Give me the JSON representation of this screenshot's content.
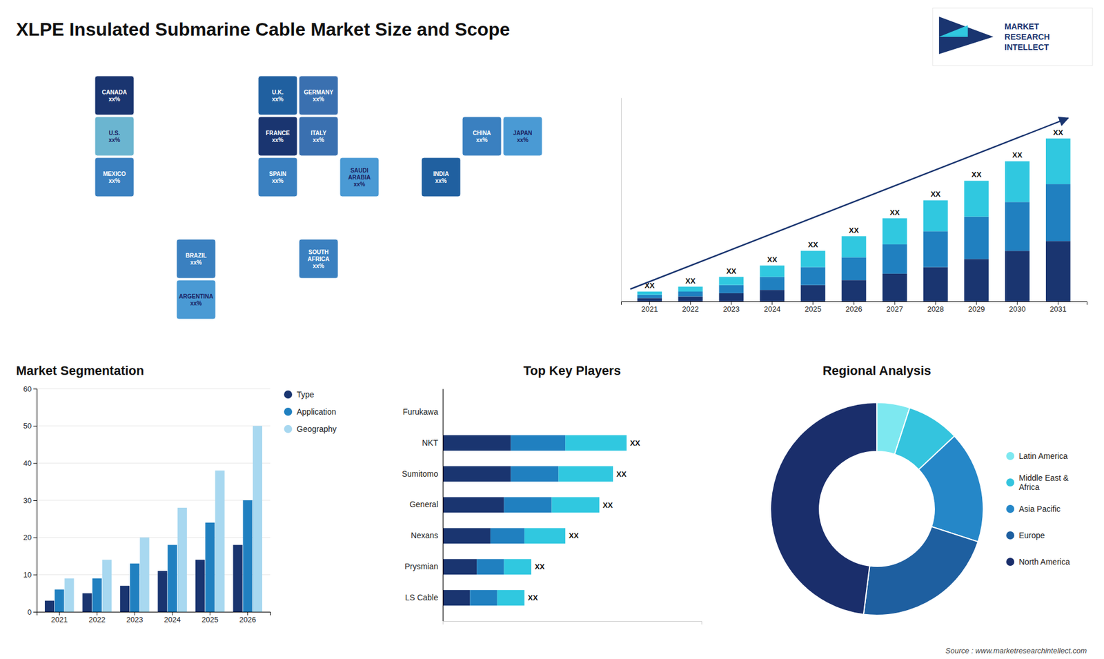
{
  "title": "XLPE Insulated Submarine Cable Market Size and Scope",
  "annotations": [
    "Source : www.marketresearchintellect.com",
    "MARKET",
    "RESEARCH",
    "INTELLECT"
  ],
  "chart_data": [
    {
      "type": "map",
      "categories": [
        "CANADA\nxx%",
        "U.S.\nxx%",
        "MEXICO\nxx%",
        "BRAZIL\nxx%",
        "ARGENTINA\nxx%",
        "U.K.\nxx%",
        "FRANCE\nxx%",
        "GERMANY\nxx%",
        "SPAIN\nxx%",
        "ITALY\nxx%",
        "SAUDI\nARABIA\nxx%",
        "SOUTH\nAFRICA\nxx%",
        "CHINA\nxx%",
        "INDIA\nxx%",
        "JAPAN\nxx%"
      ],
      "colors": [
        "#1a3570",
        "#6bb5d0",
        "#3a80c0",
        "#3a80c0",
        "#4a9ad4",
        "#2060a0",
        "#1a3570",
        "#3a70b0",
        "#3a80c0",
        "#3a70b0",
        "#4a9ad4",
        "#3a80c0",
        "#3a80c0",
        "#2060a0",
        "#4a9ad4"
      ]
    },
    {
      "type": "bar",
      "stacked": true,
      "categories": [
        "2021",
        "2022",
        "2023",
        "2024",
        "2025",
        "2026",
        "2027",
        "2028",
        "2029",
        "2030",
        "2031"
      ],
      "series": [
        {
          "color": "#1a3570",
          "values": [
            2,
            3,
            5,
            7,
            10,
            13,
            17,
            21,
            26,
            31,
            37
          ]
        },
        {
          "color": "#2080c0",
          "values": [
            2,
            3,
            5,
            8,
            11,
            14,
            18,
            22,
            26,
            30,
            35
          ]
        },
        {
          "color": "#30c8e0",
          "values": [
            2,
            3,
            5,
            7,
            10,
            13,
            16,
            19,
            22,
            25,
            28
          ]
        }
      ],
      "ylim": [
        0,
        125
      ],
      "tick_labels": "x",
      "annotations": [
        "XX",
        "XX",
        "XX",
        "XX",
        "XX",
        "XX",
        "XX",
        "XX",
        "XX",
        "XX",
        "XX"
      ]
    },
    {
      "type": "bar",
      "title": "Market Segmentation",
      "categories": [
        "2021",
        "2022",
        "2023",
        "2024",
        "2025",
        "2026"
      ],
      "series": [
        {
          "name": "Type",
          "color": "#1a3570",
          "values": [
            3,
            5,
            7,
            11,
            14,
            18
          ]
        },
        {
          "name": "Application",
          "color": "#2080c0",
          "values": [
            6,
            9,
            13,
            18,
            24,
            30
          ]
        },
        {
          "name": "Geography",
          "color": "#a8d8f0",
          "values": [
            9,
            14,
            20,
            28,
            38,
            50
          ]
        }
      ],
      "ylim": [
        0,
        60
      ],
      "yticks": [
        0,
        10,
        20,
        30,
        40,
        50,
        60
      ],
      "grid": true,
      "legend": "right"
    },
    {
      "type": "bar",
      "title": "Top Key Players",
      "orientation": "horizontal",
      "stacked": true,
      "categories": [
        "Furukawa",
        "NKT",
        "Sumitomo",
        "General",
        "Nexans",
        "Prysmian",
        "LS Cable"
      ],
      "series": [
        {
          "color": "#1a3570",
          "values": [
            0,
            10,
            10,
            9,
            7,
            5,
            4
          ]
        },
        {
          "color": "#2080c0",
          "values": [
            0,
            8,
            7,
            7,
            5,
            4,
            4
          ]
        },
        {
          "color": "#30c8e0",
          "values": [
            0,
            9,
            8,
            7,
            6,
            4,
            4
          ]
        }
      ],
      "xlim": [
        0,
        38
      ],
      "tick_labels": "y",
      "annotations": [
        null,
        "XX",
        "XX",
        "XX",
        "XX",
        "XX",
        "XX"
      ]
    },
    {
      "type": "donut",
      "title": "Regional Analysis",
      "categories": [
        "Latin America",
        "Middle East &\nAfrica",
        "Asia Pacific",
        "Europe",
        "North America"
      ],
      "values": [
        5,
        8,
        17,
        22,
        48
      ],
      "colors": [
        "#7de8f0",
        "#34c4de",
        "#2587c8",
        "#1e5fa0",
        "#1a2e6b"
      ],
      "legend": "right"
    }
  ]
}
